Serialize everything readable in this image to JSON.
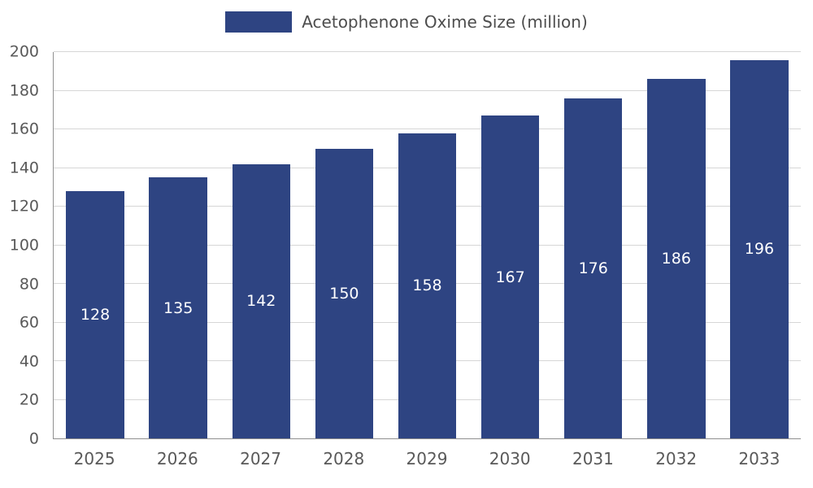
{
  "chart_data": {
    "type": "bar",
    "title": "",
    "legend_label": "Acetophenone Oxime Size (million)",
    "categories": [
      "2025",
      "2026",
      "2027",
      "2028",
      "2029",
      "2030",
      "2031",
      "2032",
      "2033"
    ],
    "values": [
      128,
      135,
      142,
      150,
      158,
      167,
      176,
      186,
      196
    ],
    "xlabel": "",
    "ylabel": "",
    "ylim": [
      0,
      200
    ],
    "ytick_step": 20,
    "grid": true,
    "legend_position": "top",
    "bar_color": "#2e4482",
    "value_label_color": "#ffffff",
    "axis_text_color": "#595959"
  }
}
